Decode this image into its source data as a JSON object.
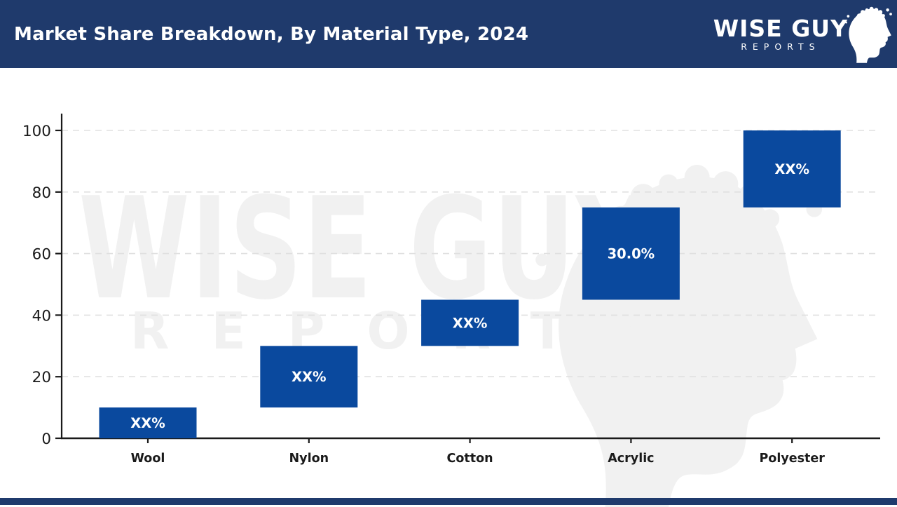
{
  "header": {
    "title": "Market Share Breakdown, By Material Type, 2024",
    "logo": {
      "name_line": "WISE GUY",
      "reports_line": "REPORTS"
    }
  },
  "watermark": {
    "name_line": "WISE GUY",
    "reports_line": "REPORTS"
  },
  "colors": {
    "header_bg": "#1f3a6c",
    "footer_bg": "#1f3a6c",
    "bar": "#0a499e",
    "bar_label": "#ffffff",
    "axis": "#1a1a1a",
    "grid": "#e0e0e0",
    "watermark": "#f1f1f1"
  },
  "chart_data": {
    "type": "bar",
    "subtype": "floating-waterfall",
    "title": "Market Share Breakdown, By Material Type, 2024",
    "categories": [
      "Wool",
      "Nylon",
      "Cotton",
      "Acrylic",
      "Polyester"
    ],
    "segments": [
      {
        "category": "Wool",
        "start": 0,
        "end": 10,
        "label": "XX%"
      },
      {
        "category": "Nylon",
        "start": 10,
        "end": 30,
        "label": "XX%"
      },
      {
        "category": "Cotton",
        "start": 30,
        "end": 45,
        "label": "XX%"
      },
      {
        "category": "Acrylic",
        "start": 45,
        "end": 75,
        "label": "30.0%"
      },
      {
        "category": "Polyester",
        "start": 75,
        "end": 100,
        "label": "XX%"
      }
    ],
    "xlabel": "",
    "ylabel": "",
    "ylim": [
      0,
      100
    ],
    "yticks": [
      0,
      20,
      40,
      60,
      80,
      100
    ],
    "grid": "horizontal-dashed",
    "legend": "none"
  }
}
